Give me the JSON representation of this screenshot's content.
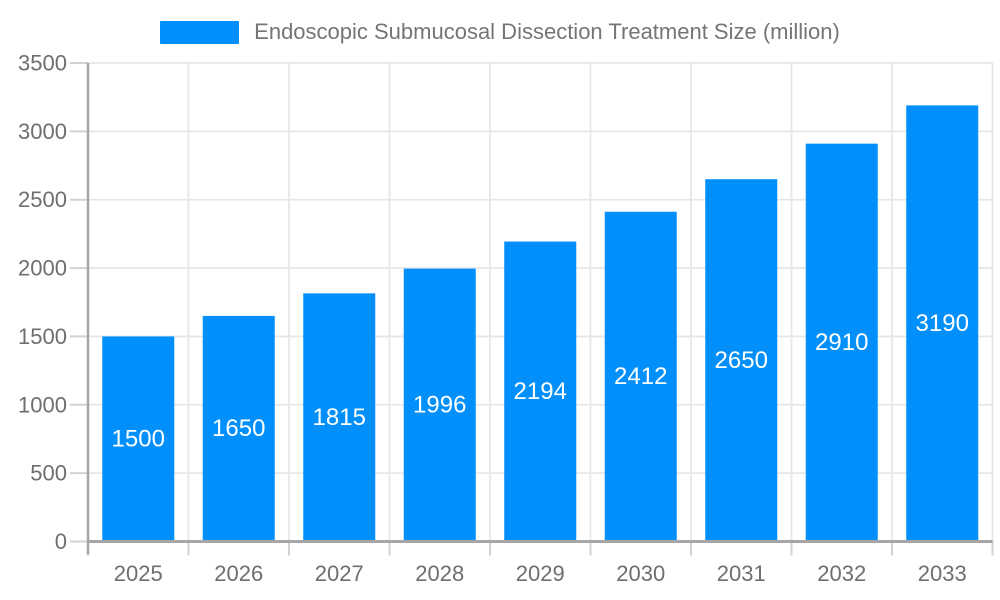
{
  "legend": {
    "label": "Endoscopic Submucosal Dissection Treatment Size (million)"
  },
  "chart_data": {
    "type": "bar",
    "title": "Endoscopic Submucosal Dissection Treatment Size (million)",
    "series": [
      {
        "name": "Endoscopic Submucosal Dissection Treatment Size (million)",
        "values": [
          1500,
          1650,
          1815,
          1996,
          2194,
          2412,
          2650,
          2910,
          3190
        ]
      }
    ],
    "categories": [
      "2025",
      "2026",
      "2027",
      "2028",
      "2029",
      "2030",
      "2031",
      "2032",
      "2033"
    ],
    "data_labels": [
      "1500",
      "1650",
      "1815",
      "1996",
      "2194",
      "2412",
      "2650",
      "2910",
      "3190"
    ],
    "xlabel": "",
    "ylabel": "",
    "ylim": [
      0,
      3500
    ],
    "yticks": [
      0,
      500,
      1000,
      1500,
      2000,
      2500,
      3000,
      3500
    ],
    "grid": true,
    "legend_position": "top"
  },
  "colors": {
    "bar": "#008FFB",
    "grid": "#e7e7e7",
    "tick": "#d2d2d2",
    "axis": "#a6a6a6",
    "axis_label": "#6e6e6e",
    "legend_label": "#757575",
    "data_label": "#ffffff",
    "background": "#ffffff"
  }
}
